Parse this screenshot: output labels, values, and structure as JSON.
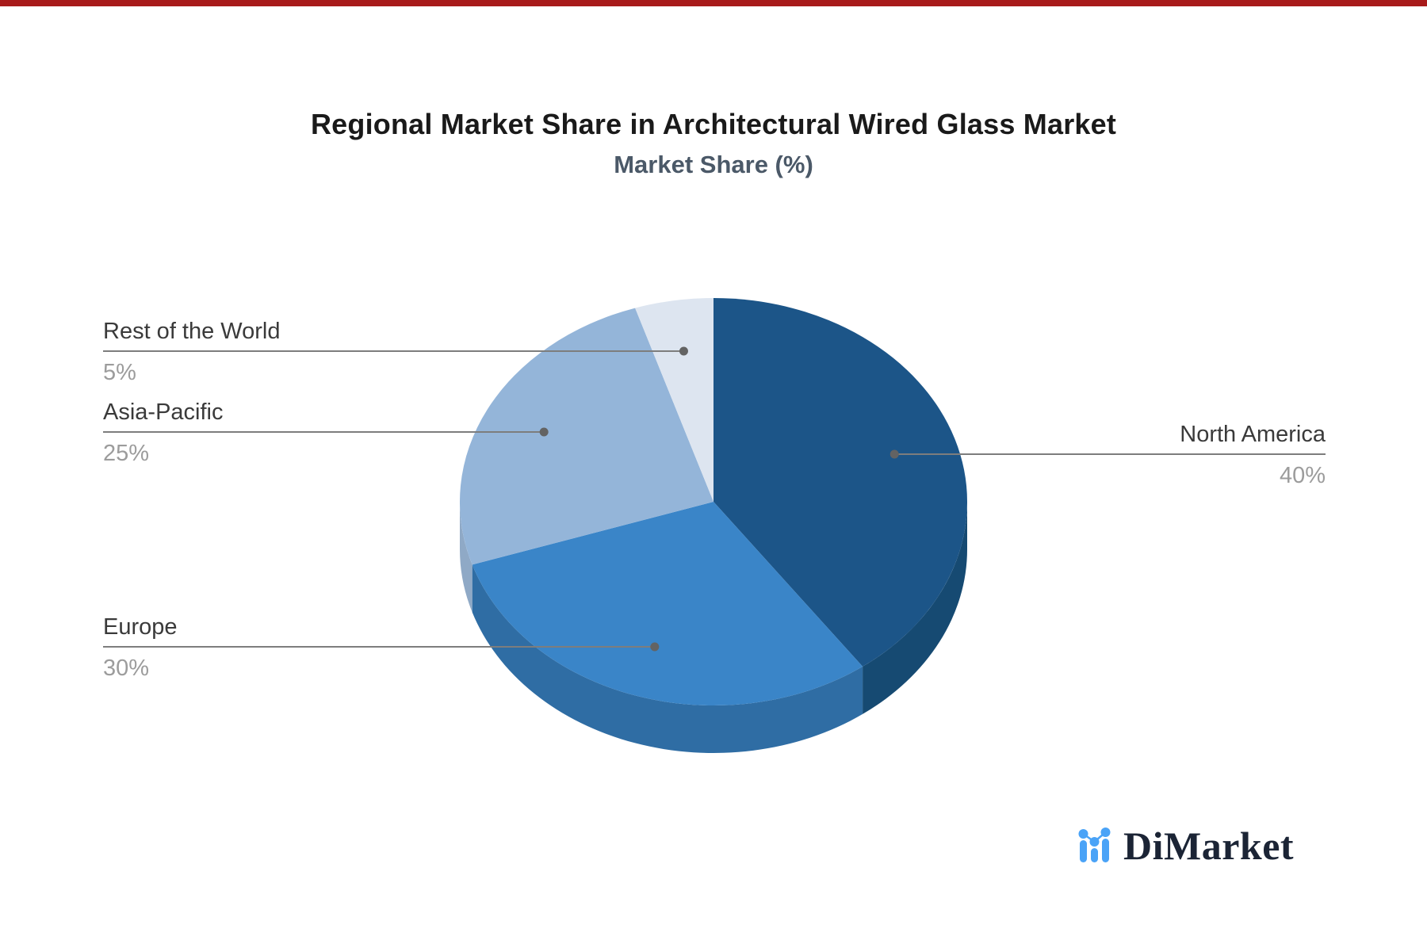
{
  "header": {
    "title": "Regional Market Share in Architectural Wired Glass Market",
    "subtitle": "Market Share (%)"
  },
  "chart_data": {
    "type": "pie",
    "title": "Regional Market Share in Architectural Wired Glass Market",
    "subtitle": "Market Share (%)",
    "unit": "%",
    "style": "3d-depth-pie",
    "direction": "clockwise",
    "start_angle_deg": 0,
    "legend_position": "none",
    "slices": [
      {
        "label": "North America",
        "value": 40,
        "pct_label": "40%",
        "color": "#1c5588",
        "side_color": "#164a72",
        "label_side": "right"
      },
      {
        "label": "Europe",
        "value": 30,
        "pct_label": "30%",
        "color": "#3a85c8",
        "side_color": "#2f6da4",
        "label_side": "left"
      },
      {
        "label": "Asia-Pacific",
        "value": 25,
        "pct_label": "25%",
        "color": "#94b5d9",
        "side_color": "#8fa9c6",
        "label_side": "left"
      },
      {
        "label": "Rest of the World",
        "value": 5,
        "pct_label": "5%",
        "color": "#dde5f0",
        "side_color": "#c9d4e4",
        "label_side": "left"
      }
    ]
  },
  "branding": {
    "logo_text": "DiMarket",
    "logo_icon": "bar-chart-icon",
    "icon_color": "#4aa3f7",
    "text_color": "#1b2435"
  },
  "colors": {
    "background": "#ffffff",
    "top_strip": "#a81a1a",
    "title_text": "#1a1a1a",
    "subtitle_text": "#4b5968",
    "label_text": "#3a3a3a",
    "pct_text": "#9c9c9c",
    "leader_line": "#7d7d7d",
    "leader_dot": "#636363"
  }
}
